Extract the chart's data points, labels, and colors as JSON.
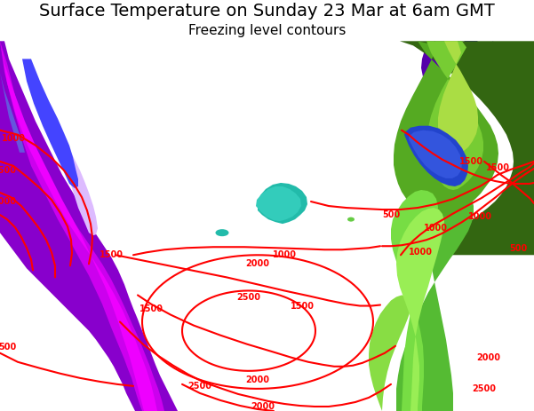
{
  "title": "Surface Temperature on Sunday 23 Mar at 6am GMT",
  "subtitle": "Freezing level contours",
  "title_fontsize": 14,
  "subtitle_fontsize": 11,
  "fig_width": 6.01,
  "fig_height": 4.63,
  "dpi": 100,
  "header_color": "#f0f0f0",
  "ocean_color": "#c8d4e8",
  "contour_color": "#ff0000",
  "contour_linewidth": 1.5,
  "contour_label_fontsize": 7,
  "border_color": "#999999"
}
